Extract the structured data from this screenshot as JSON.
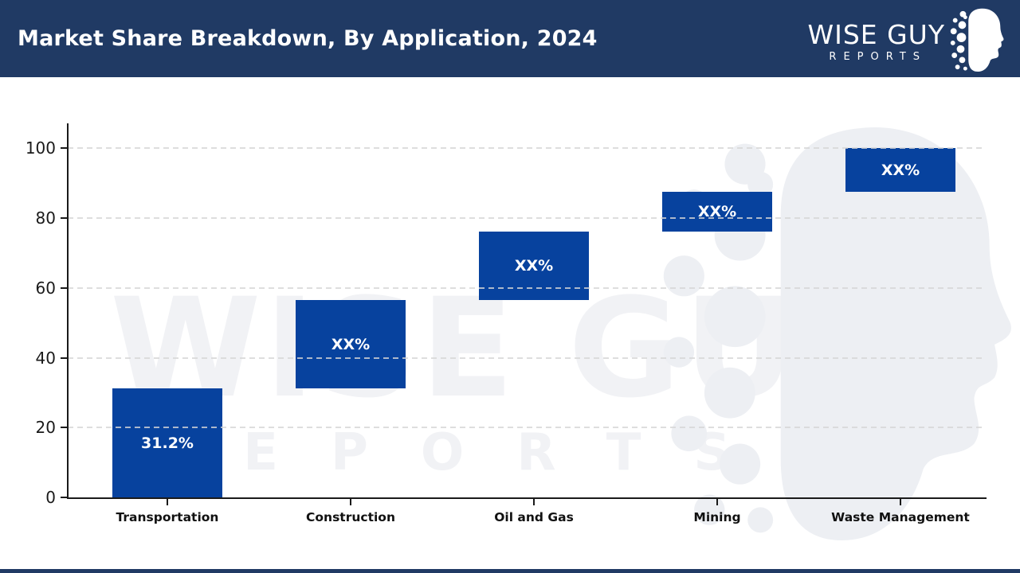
{
  "header": {
    "title": "Market Share Breakdown, By Application, 2024",
    "logo": {
      "line1": "WISE GUY",
      "line2": "REPORTS"
    }
  },
  "watermark": {
    "line1": "WISE GUY",
    "line2": "REPORTS"
  },
  "colors": {
    "header_bg": "#203a64",
    "footer_bg": "#203a64",
    "bar": "#07429e",
    "bar_label": "#ffffff",
    "axis": "#1a1a1a",
    "grid": "#d6d6d6",
    "watermark": "#f1f2f5",
    "watermark_head": "#edeff3"
  },
  "chart_data": {
    "type": "bar",
    "subtype": "waterfall",
    "title": "Market Share Breakdown, By Application, 2024",
    "categories": [
      "Transportation",
      "Construction",
      "Oil and Gas",
      "Mining",
      "Waste Management"
    ],
    "segments": [
      {
        "category": "Transportation",
        "start": 0,
        "end": 31.2,
        "value": 31.2,
        "label": "31.2%"
      },
      {
        "category": "Construction",
        "start": 31.2,
        "end": 56.5,
        "value": 25.3,
        "label": "XX%"
      },
      {
        "category": "Oil and Gas",
        "start": 56.5,
        "end": 76.1,
        "value": 19.6,
        "label": "XX%"
      },
      {
        "category": "Mining",
        "start": 76.1,
        "end": 87.5,
        "value": 11.4,
        "label": "XX%"
      },
      {
        "category": "Waste Management",
        "start": 87.5,
        "end": 100,
        "value": 12.5,
        "label": "XX%"
      }
    ],
    "yticks": [
      "0",
      "20",
      "40",
      "60",
      "80",
      "100"
    ],
    "ylim": [
      0,
      106
    ],
    "xlabel": "",
    "ylabel": "",
    "grid": "horizontal-dashed",
    "legend": "none"
  }
}
